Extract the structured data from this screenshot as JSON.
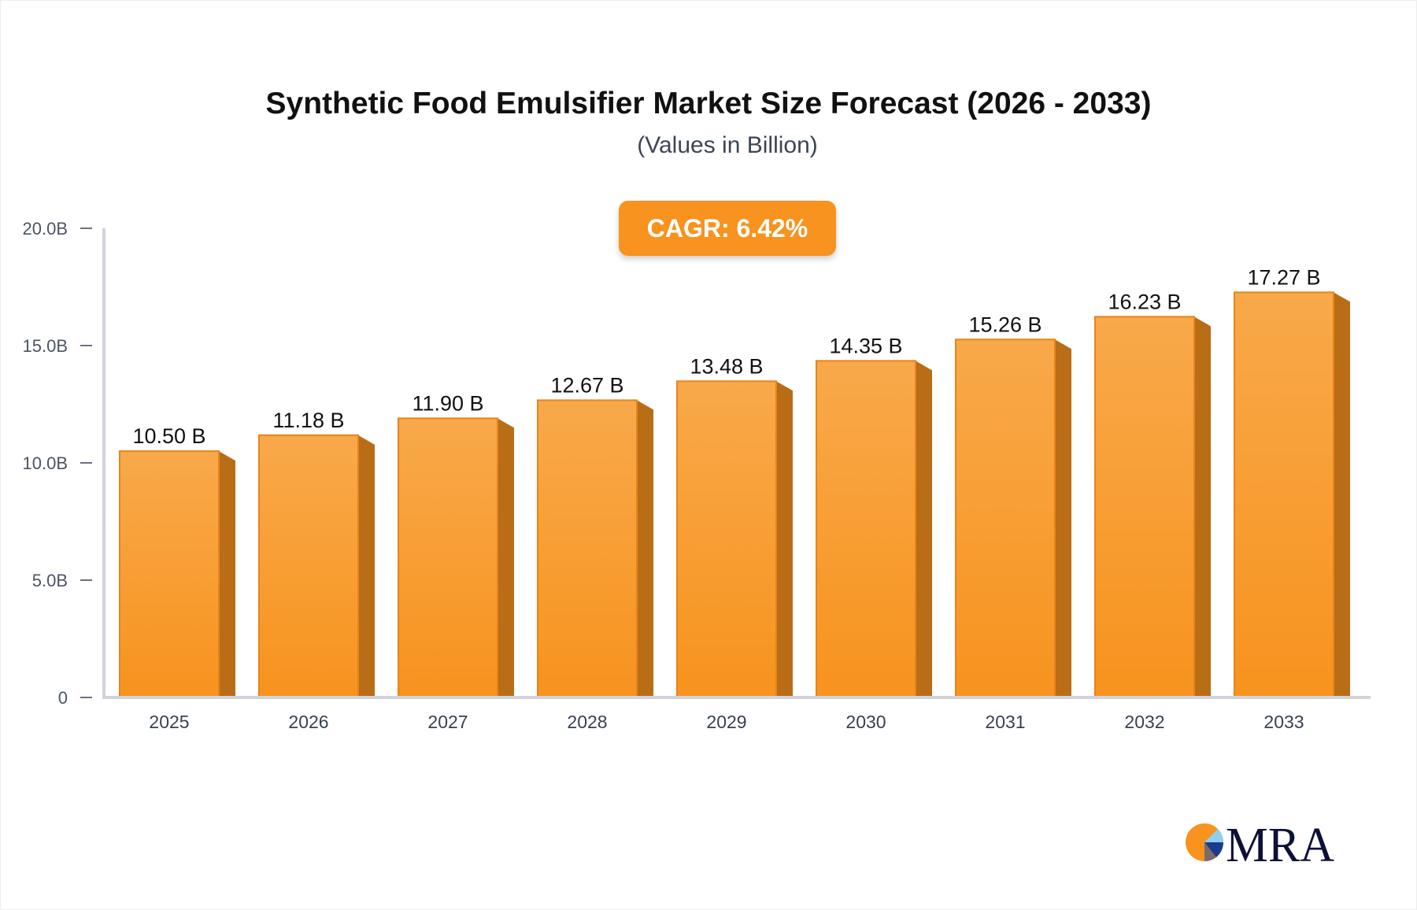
{
  "chart_data": {
    "type": "bar",
    "title": "Synthetic Food Emulsifier Market Size Forecast (2026 - 2033)",
    "subtitle": "(Values in Billion)",
    "annotation": "CAGR: 6.42%",
    "categories": [
      "2025",
      "2026",
      "2027",
      "2028",
      "2029",
      "2030",
      "2031",
      "2032",
      "2033"
    ],
    "values": [
      10.5,
      11.18,
      11.9,
      12.67,
      13.48,
      14.35,
      15.26,
      16.23,
      17.27
    ],
    "data_labels": [
      "10.50 B",
      "11.18 B",
      "11.90 B",
      "12.67 B",
      "13.48 B",
      "14.35 B",
      "15.26 B",
      "16.23 B",
      "17.27 B"
    ],
    "yticks": [
      0,
      5,
      10,
      15,
      20
    ],
    "ytick_labels": [
      "0",
      "5.0B",
      "10.0B",
      "15.0B",
      "20.0B"
    ],
    "ylim": [
      0,
      20
    ],
    "xlabel": "",
    "ylabel": "",
    "grid": false,
    "bar_color": "#f7931e",
    "bar_side_color": "#b86d16"
  },
  "logo": {
    "text": "MRA"
  }
}
